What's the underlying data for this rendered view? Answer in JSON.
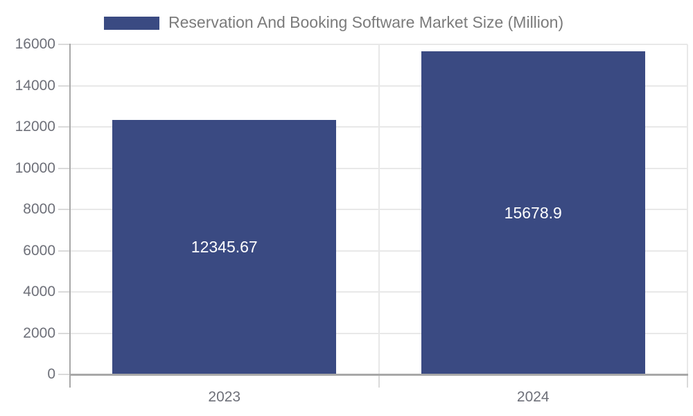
{
  "chart_data": {
    "type": "bar",
    "title": "Reservation And Booking Software Market Size (Million)",
    "legend": {
      "label": "Reservation And Booking Software Market Size (Million)",
      "position": "top-center"
    },
    "categories": [
      "2023",
      "2024"
    ],
    "values": [
      12345.67,
      15678.9
    ],
    "data_labels": [
      "12345.67",
      "15678.9"
    ],
    "xlabel": "",
    "ylabel": "",
    "ylim": [
      0,
      16000
    ],
    "ytick_interval": 2000,
    "ytick_values": [
      0,
      2000,
      4000,
      6000,
      8000,
      10000,
      12000,
      14000,
      16000
    ],
    "ytick_labels": [
      "0",
      "2000",
      "4000",
      "6000",
      "8000",
      "10000",
      "12000",
      "14000",
      "16000"
    ],
    "grid": true,
    "colors": {
      "bar": "#3A4A82",
      "bar_label_text": "#FFFFFF",
      "title_text": "#7B7B7B",
      "axis_text": "#6E7079",
      "gridline": "#E8E8E8",
      "axis_line": "#A8A8A8",
      "tick_line": "#DADADA",
      "background": "#FFFFFF"
    }
  }
}
